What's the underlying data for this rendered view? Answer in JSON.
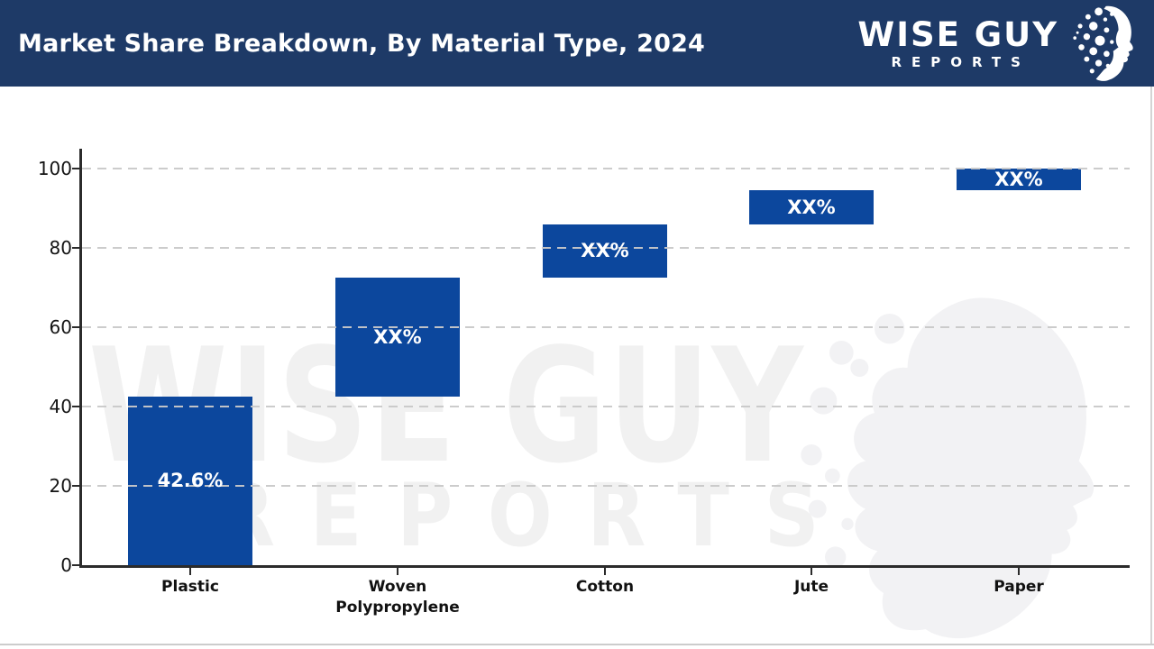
{
  "header": {
    "title": "Market Share Breakdown, By Material Type, 2024",
    "logo": {
      "line1": "WISE GUY",
      "line2": "REPORTS"
    }
  },
  "watermark": {
    "line1": "WISE GUY",
    "line2": "REPORTS"
  },
  "chart_data": {
    "type": "bar",
    "subtype": "waterfall",
    "title": "Market Share Breakdown, By Material Type, 2024",
    "categories": [
      "Plastic",
      "Woven\nPolypropylene",
      "Cotton",
      "Jute",
      "Paper"
    ],
    "segments": [
      {
        "category": "Plastic",
        "start": 0,
        "end": 42.6,
        "label": "42.6%"
      },
      {
        "category": "Woven Polypropylene",
        "start": 42.6,
        "end": 72.5,
        "label": "XX%"
      },
      {
        "category": "Cotton",
        "start": 72.5,
        "end": 86.0,
        "label": "XX%"
      },
      {
        "category": "Jute",
        "start": 86.0,
        "end": 94.5,
        "label": "XX%"
      },
      {
        "category": "Paper",
        "start": 94.5,
        "end": 100.0,
        "label": "XX%"
      }
    ],
    "xlabel": "",
    "ylabel": "",
    "yticks": [
      0,
      20,
      40,
      60,
      80,
      100
    ],
    "ylim": [
      0,
      105
    ],
    "grid": true,
    "grid_style": "dashed",
    "legend": false,
    "bar_color": "#0c479d",
    "bar_label_color": "#ffffff"
  },
  "colors": {
    "header_bg": "#1e3a67",
    "bar": "#0c479d",
    "axis": "#2b2b2b",
    "grid": "#c9c9c9",
    "watermark": "#f1f1f1"
  }
}
